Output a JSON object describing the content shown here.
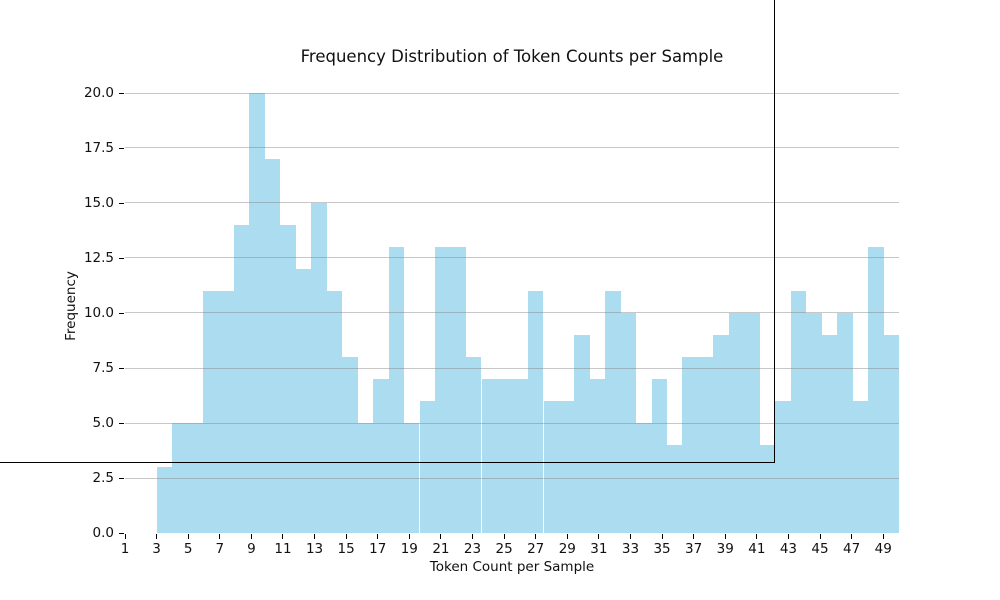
{
  "title": "Frequency Distribution of Token Counts per Sample",
  "xlabel": "Token Count per Sample",
  "ylabel": "Frequency",
  "chart_data": {
    "type": "bar",
    "subtype": "histogram",
    "title": "Frequency Distribution of Token Counts per Sample",
    "xlabel": "Token Count per Sample",
    "ylabel": "Frequency",
    "bin_start": 3,
    "bin_end": 50,
    "bin_count": 48,
    "values": [
      3,
      5,
      5,
      11,
      11,
      14,
      20,
      17,
      14,
      12,
      15,
      11,
      8,
      5,
      7,
      13,
      5,
      6,
      13,
      13,
      8,
      7,
      7,
      7,
      11,
      6,
      6,
      9,
      7,
      11,
      10,
      5,
      7,
      4,
      8,
      8,
      9,
      10,
      10,
      4,
      6,
      11,
      10,
      9,
      10,
      6,
      13,
      9
    ],
    "xlim": [
      1,
      50
    ],
    "ylim": [
      0,
      21
    ],
    "x_tick_values": [
      1,
      3,
      5,
      7,
      9,
      11,
      13,
      15,
      17,
      19,
      21,
      23,
      25,
      27,
      29,
      31,
      33,
      35,
      37,
      39,
      41,
      43,
      45,
      47,
      49
    ],
    "y_tick_values": [
      0,
      2.5,
      5,
      7.5,
      10,
      12.5,
      15,
      17.5,
      20
    ],
    "y_tick_labels": [
      "0.0",
      "2.5",
      "5.0",
      "7.5",
      "10.0",
      "12.5",
      "15.0",
      "17.5",
      "20.0"
    ],
    "grid": "horizontal-only",
    "legend": "none",
    "bar_color": "#abdcf0",
    "grid_color": "#b0b0b0",
    "axis_color": "#000000",
    "seam_edges": [
      {
        "x": 19.6458,
        "height": 5
      },
      {
        "x": 23.5625,
        "height": 7
      },
      {
        "x": 27.4792,
        "height": 6
      }
    ]
  }
}
